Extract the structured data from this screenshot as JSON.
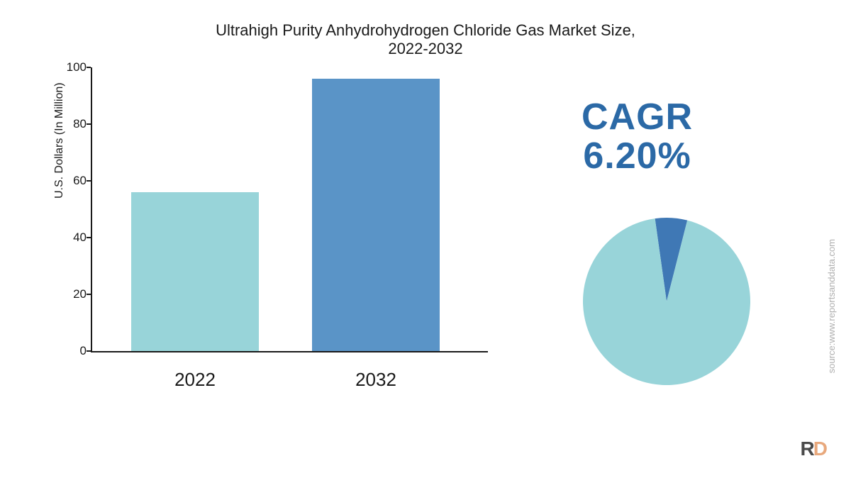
{
  "title": "Ultrahigh Purity Anhydrohydrogen Chloride Gas Market Size, 2022-2032",
  "yAxisLabel": "U.S. Dollars (In Million)",
  "barChart": {
    "type": "bar",
    "ylim": [
      0,
      100
    ],
    "ytick_step": 20,
    "yticks": [
      0,
      20,
      40,
      60,
      80,
      100
    ],
    "plotHeightPx": 400,
    "barWidthPx": 180,
    "categories": [
      "2022",
      "2032"
    ],
    "values": [
      56,
      96
    ],
    "bar_colors": [
      "#98d4d9",
      "#5a94c7"
    ],
    "background_color": "#ffffff",
    "axis_color": "#1a1a1a",
    "label_fontsize": 26,
    "tick_fontsize": 17
  },
  "cagr": {
    "label": "CAGR",
    "value": "6.20%",
    "color": "#2b69a6",
    "fontsize": 52
  },
  "pie": {
    "type": "pie",
    "diameterPx": 240,
    "slices": [
      {
        "pct": 6.2,
        "color": "#3f78b5"
      },
      {
        "pct": 93.8,
        "color": "#98d4d9"
      }
    ],
    "start_angle_deg": -8
  },
  "source": "source:www.reportsanddata.com",
  "logo": {
    "r": "R",
    "d": "D"
  }
}
